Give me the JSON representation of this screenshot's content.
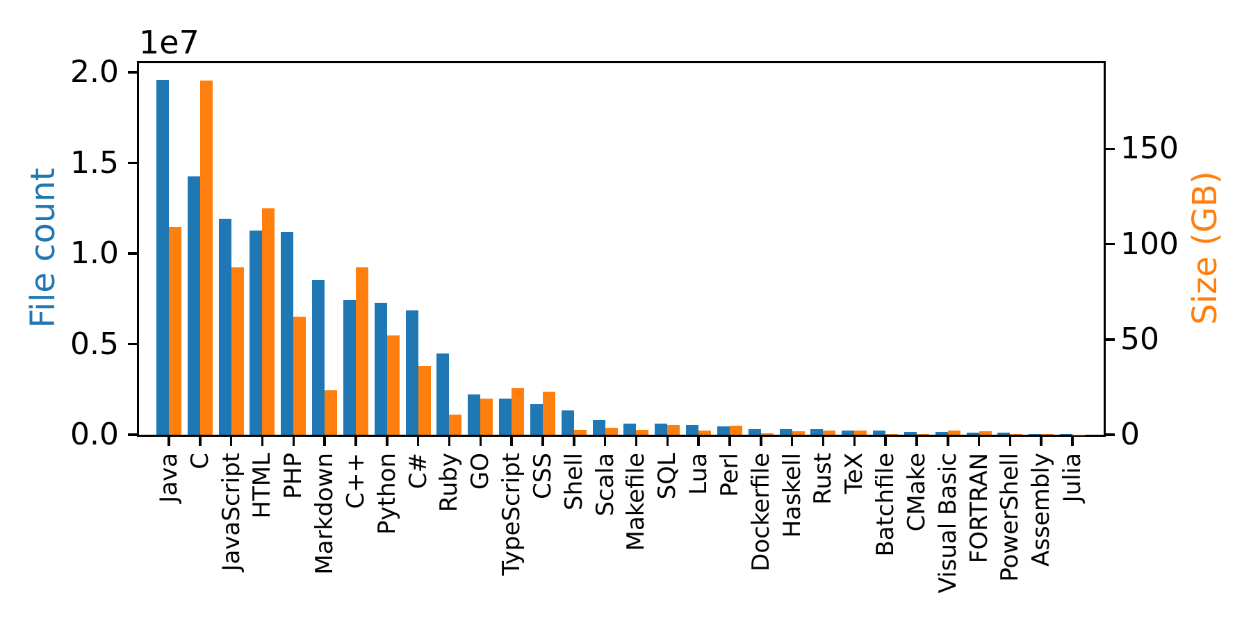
{
  "chart_data": {
    "type": "bar",
    "title": "",
    "grid": false,
    "legend": "none",
    "categories": [
      "Java",
      "C",
      "JavaScript",
      "HTML",
      "PHP",
      "Markdown",
      "C++",
      "Python",
      "C#",
      "Ruby",
      "GO",
      "TypeScript",
      "CSS",
      "Shell",
      "Scala",
      "Makefile",
      "SQL",
      "Lua",
      "Perl",
      "Dockerfile",
      "Haskell",
      "Rust",
      "TeX",
      "Batchfile",
      "CMake",
      "Visual Basic",
      "FORTRAN",
      "PowerShell",
      "Assembly",
      "Julia"
    ],
    "series": [
      {
        "name": "File count",
        "axis": "left",
        "color": "#1f77b4",
        "values": [
          19600000,
          14250000,
          11900000,
          11250000,
          11200000,
          8550000,
          7450000,
          7300000,
          6870000,
          4500000,
          2220000,
          2000000,
          1700000,
          1350000,
          790000,
          620000,
          620000,
          550000,
          460000,
          300000,
          300000,
          320000,
          220000,
          220000,
          140000,
          140000,
          100000,
          120000,
          40000,
          20000
        ]
      },
      {
        "name": "Size (GB)",
        "axis": "right",
        "color": "#ff7f0e",
        "values": [
          109,
          186,
          88,
          119,
          62,
          23.5,
          88,
          52,
          36,
          10.5,
          19,
          24.5,
          22.5,
          2.6,
          3.5,
          2.6,
          5.2,
          2.2,
          4.6,
          0.6,
          1.7,
          2.3,
          2.3,
          0.3,
          0.3,
          2.1,
          1.7,
          0.2,
          0.5,
          0.1
        ]
      }
    ],
    "left_axis": {
      "label": "File count",
      "color": "#1f77b4",
      "offset_label": "1e7",
      "tick_labels": [
        "0.0",
        "0.5",
        "1.0",
        "1.5",
        "2.0"
      ],
      "tick_values": [
        0,
        5000000,
        10000000,
        15000000,
        20000000
      ],
      "range": [
        0,
        20500000
      ]
    },
    "right_axis": {
      "label": "Size (GB)",
      "color": "#ff7f0e",
      "tick_labels": [
        "0",
        "50",
        "100",
        "150"
      ],
      "tick_values": [
        0,
        50,
        100,
        150
      ],
      "range": [
        0,
        195
      ]
    },
    "x_axis": {
      "label": "",
      "tick_label_rotation": 90
    }
  }
}
